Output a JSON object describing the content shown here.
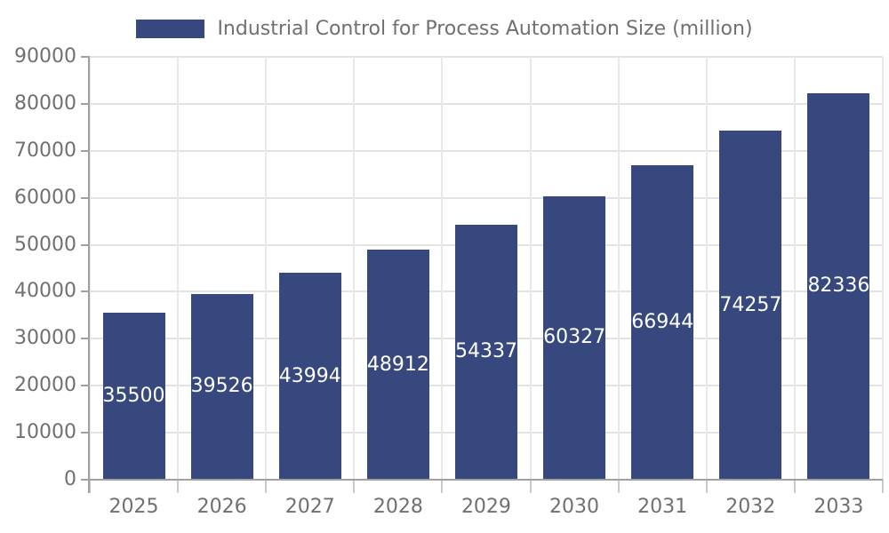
{
  "legend": {
    "label": "Industrial Control for Process Automation Size (million)"
  },
  "chart_data": {
    "type": "bar",
    "title": "Industrial Control for Process Automation Size (million)",
    "series_name": "Industrial Control for Process Automation Size (million)",
    "categories": [
      "2025",
      "2026",
      "2027",
      "2028",
      "2029",
      "2030",
      "2031",
      "2032",
      "2033"
    ],
    "values": [
      35500,
      39526,
      43994,
      48912,
      54337,
      60327,
      66944,
      74257,
      82336
    ],
    "value_labels": [
      "35500",
      "39526",
      "43994",
      "48912",
      "54337",
      "60327",
      "66944",
      "74257",
      "82336"
    ],
    "xlabel": "",
    "ylabel": "",
    "ylim": [
      0,
      90000
    ],
    "ytick_step": 10000,
    "ytick_labels": [
      "0",
      "10000",
      "20000",
      "30000",
      "40000",
      "50000",
      "60000",
      "70000",
      "80000",
      "90000"
    ],
    "grid": true,
    "legend_position": "top",
    "colors": {
      "bar": "#36487E",
      "bar_label": "#FFFFFF",
      "axis_text": "#707070",
      "grid_h": "#E3E3E3",
      "grid_v": "#E8E8E8",
      "axis_line": "#A0A0A0",
      "x_tick": "#C9C9C9"
    }
  }
}
